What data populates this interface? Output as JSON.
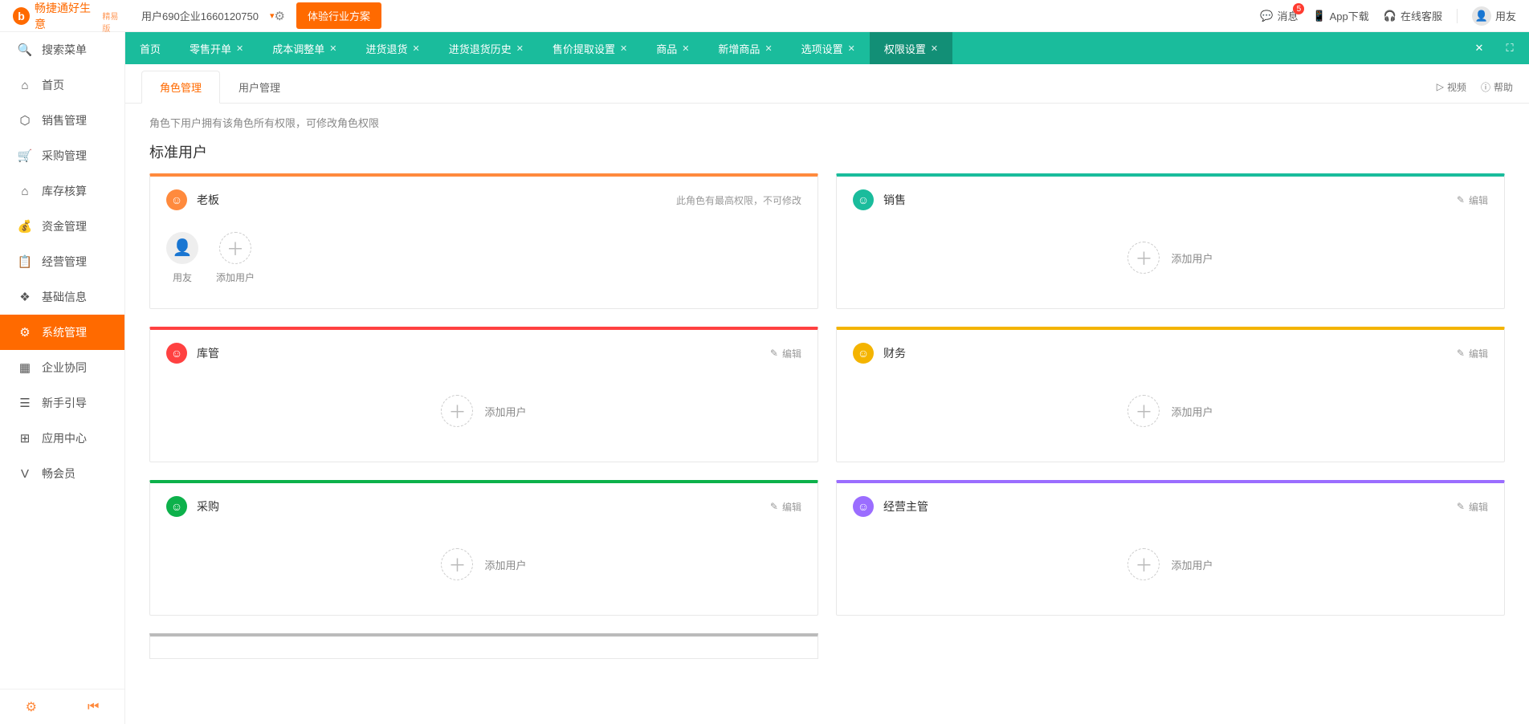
{
  "header": {
    "logo_text": "畅捷通好生意",
    "logo_sub": "精易版",
    "tenant": "用户690企业1660120750",
    "cta": "体验行业方案",
    "right": {
      "messages": "消息",
      "messages_badge": "5",
      "app_download": "App下载",
      "online_service": "在线客服",
      "user_name": "用友"
    }
  },
  "sidebar": {
    "items": [
      {
        "label": "搜索菜单",
        "icon": "search"
      },
      {
        "label": "首页",
        "icon": "home"
      },
      {
        "label": "销售管理",
        "icon": "sale"
      },
      {
        "label": "采购管理",
        "icon": "cart"
      },
      {
        "label": "库存核算",
        "icon": "stock"
      },
      {
        "label": "资金管理",
        "icon": "money"
      },
      {
        "label": "经营管理",
        "icon": "biz"
      },
      {
        "label": "基础信息",
        "icon": "info"
      },
      {
        "label": "系统管理",
        "icon": "system",
        "active": true
      },
      {
        "label": "企业协同",
        "icon": "collab"
      },
      {
        "label": "新手引导",
        "icon": "guide"
      },
      {
        "label": "应用中心",
        "icon": "apps"
      },
      {
        "label": "畅会员",
        "icon": "vip"
      }
    ]
  },
  "tabs": [
    {
      "label": "首页",
      "closable": false
    },
    {
      "label": "零售开单",
      "closable": true
    },
    {
      "label": "成本调整单",
      "closable": true
    },
    {
      "label": "进货退货",
      "closable": true
    },
    {
      "label": "进货退货历史",
      "closable": true
    },
    {
      "label": "售价提取设置",
      "closable": true
    },
    {
      "label": "商品",
      "closable": true
    },
    {
      "label": "新增商品",
      "closable": true
    },
    {
      "label": "选项设置",
      "closable": true
    },
    {
      "label": "权限设置",
      "closable": true,
      "active": true
    }
  ],
  "subtabs": {
    "items": [
      {
        "label": "角色管理",
        "active": true
      },
      {
        "label": "用户管理"
      }
    ],
    "right": {
      "video": "视频",
      "help": "帮助"
    }
  },
  "page": {
    "desc": "角色下用户拥有该角色所有权限，可修改角色权限",
    "section_title": "标准用户",
    "add_user_label": "添加用户",
    "edit_label": "编辑"
  },
  "roles": [
    {
      "name": "老板",
      "accent": "#ff8a3d",
      "icon_bg": "#ff8a3d",
      "right_text": "此角色有最高权限，不可修改",
      "editable": false,
      "users": [
        {
          "name": "用友"
        }
      ],
      "add_style": "inline"
    },
    {
      "name": "销售",
      "accent": "#1abc9c",
      "icon_bg": "#1abc9c",
      "editable": true,
      "users": [],
      "add_style": "center"
    },
    {
      "name": "库管",
      "accent": "#ff4141",
      "icon_bg": "#ff4141",
      "editable": true,
      "users": [],
      "add_style": "center"
    },
    {
      "name": "财务",
      "accent": "#f4b400",
      "icon_bg": "#f4b400",
      "editable": true,
      "users": [],
      "add_style": "center"
    },
    {
      "name": "采购",
      "accent": "#0db14b",
      "icon_bg": "#0db14b",
      "editable": true,
      "users": [],
      "add_style": "center"
    },
    {
      "name": "经营主管",
      "accent": "#9b6dff",
      "icon_bg": "#9b6dff",
      "editable": true,
      "users": [],
      "add_style": "center"
    }
  ]
}
